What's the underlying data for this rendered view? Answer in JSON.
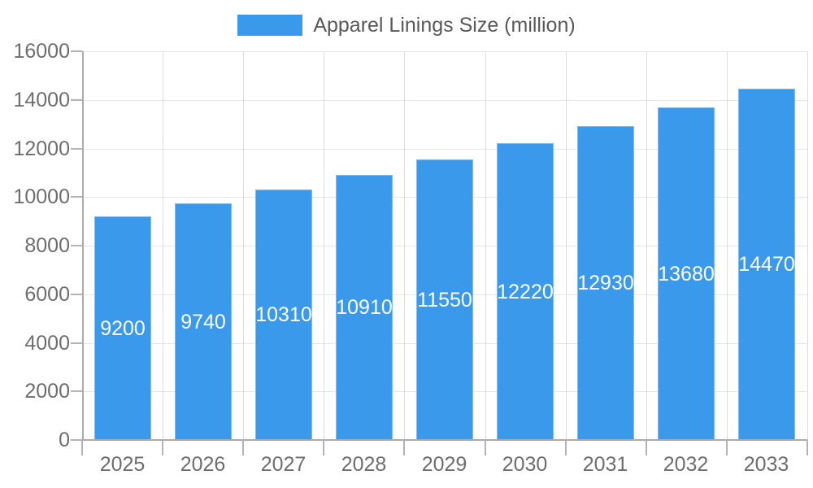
{
  "chart_data": {
    "type": "bar",
    "title": "Apparel Linings Size (million)",
    "categories": [
      "2025",
      "2026",
      "2027",
      "2028",
      "2029",
      "2030",
      "2031",
      "2032",
      "2033"
    ],
    "values": [
      9200,
      9740,
      10310,
      10910,
      11550,
      12220,
      12930,
      13680,
      14470
    ],
    "value_labels": [
      "9200",
      "9740",
      "10310",
      "10910",
      "11550",
      "12220",
      "12930",
      "13680",
      "14470"
    ],
    "xlabel": "",
    "ylabel": "",
    "ylim": [
      0,
      16000
    ],
    "y_tick_interval": 2000,
    "y_tick_labels": [
      "0",
      "2000",
      "4000",
      "6000",
      "8000",
      "10000",
      "12000",
      "14000",
      "16000"
    ],
    "grid": true,
    "legend_position": "top",
    "colors": {
      "bar": "#3b99ec",
      "value_label": "#ffffff",
      "axis": "#ababab",
      "tick": "#b3b3b3",
      "gridline_h": "#e6e6e6",
      "gridline_v": "#dcdcdc",
      "tick_label": "#6e6e6e",
      "legend_text": "#595959",
      "background": "#ffffff"
    }
  }
}
